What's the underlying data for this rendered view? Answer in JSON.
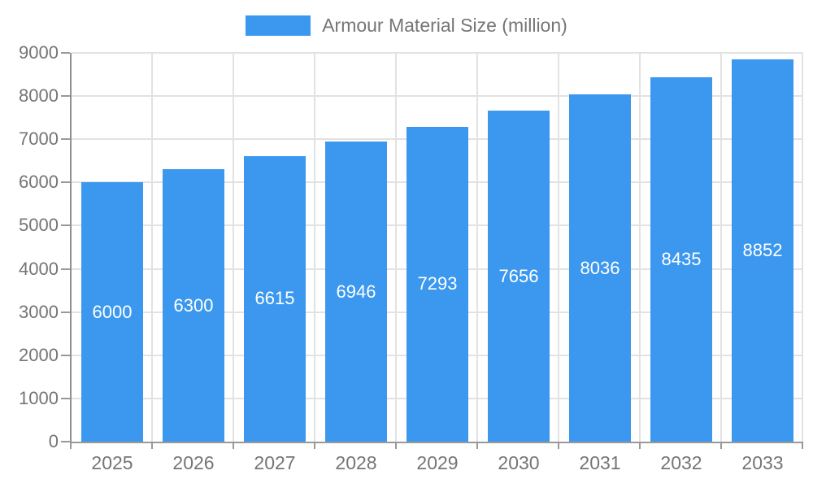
{
  "legend": {
    "label": "Armour Material Size (million)",
    "swatch_color": "#3b98ee"
  },
  "chart_data": {
    "type": "bar",
    "title": "Armour Material Size (million)",
    "categories": [
      "2025",
      "2026",
      "2027",
      "2028",
      "2029",
      "2030",
      "2031",
      "2032",
      "2033"
    ],
    "series": [
      {
        "name": "Armour Material Size (million)",
        "values": [
          6000,
          6300,
          6615,
          6946,
          7293,
          7656,
          8036,
          8435,
          8852
        ]
      }
    ],
    "value_labels": [
      "6000",
      "6300",
      "6615",
      "6946",
      "7293",
      "7656",
      "8036",
      "8435",
      "8852"
    ],
    "xlabel": "",
    "ylabel": "",
    "ylim": [
      0,
      9000
    ],
    "yticks": [
      0,
      1000,
      2000,
      3000,
      4000,
      5000,
      6000,
      7000,
      8000,
      9000
    ],
    "grid": true,
    "legend_position": "top-center",
    "colors": {
      "bar": "#3b98ee",
      "value_label": "#ffffff",
      "gridline": "#e2e2e2",
      "axis_line": "#8f8f8f",
      "tick_label": "#757575"
    }
  }
}
